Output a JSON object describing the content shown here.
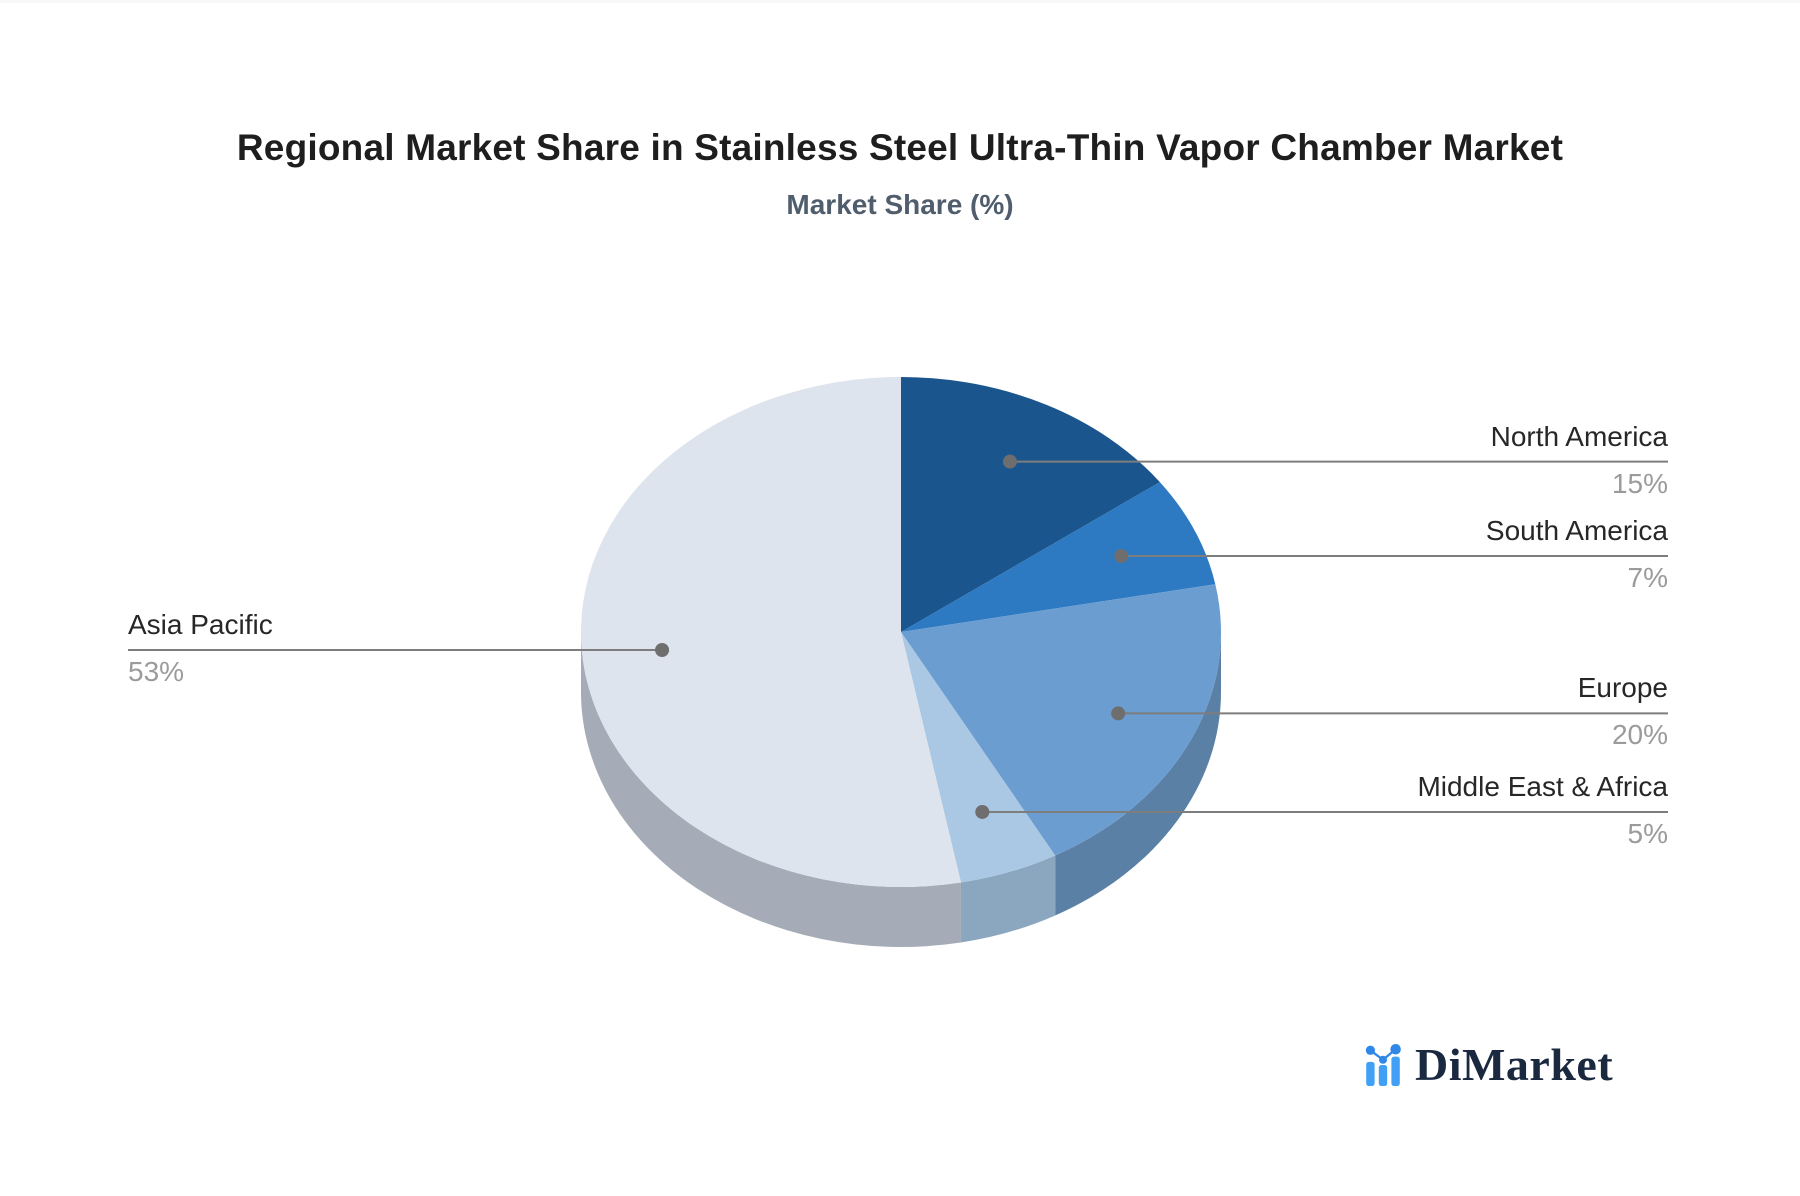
{
  "chart_data": {
    "type": "pie",
    "title": "Regional Market Share in Stainless Steel Ultra-Thin Vapor Chamber Market",
    "subtitle": "Market Share (%)",
    "style": {
      "effect": "3d",
      "leader_line_color": "#7d7d7d",
      "dot_color": "#6e6e6e",
      "background": "#ffffff",
      "title_color": "#1e1e1e",
      "subtitle_color": "#4f5d6c",
      "label_color": "#272727",
      "pct_color": "#9b9b9b"
    },
    "start_angle_deg": 0,
    "legend_position": "callout-labels",
    "regions": [
      {
        "name": "North America",
        "value": 15,
        "pct_label": "15%",
        "color": "#1a558d",
        "side_color": "#144672",
        "label_side": "right"
      },
      {
        "name": "South America",
        "value": 7,
        "pct_label": "7%",
        "color": "#2d7ac2",
        "side_color": "#266aa8",
        "label_side": "right"
      },
      {
        "name": "Europe",
        "value": 20,
        "pct_label": "20%",
        "color": "#6b9dd1",
        "side_color": "#5b80a5",
        "label_side": "right"
      },
      {
        "name": "Middle East & Africa",
        "value": 5,
        "pct_label": "5%",
        "color": "#aac8e4",
        "side_color": "#8ba6bf",
        "label_side": "right"
      },
      {
        "name": "Asia Pacific",
        "value": 53,
        "pct_label": "53%",
        "color": "#dde4ee",
        "side_color": "#a6acb7",
        "label_side": "left"
      }
    ]
  },
  "branding": {
    "logo_text": "DiMarket",
    "logo_icon": "bar-chart-trend-icon",
    "logo_bar_color": "#41a0f5",
    "logo_dot_color": "#2f88e8",
    "logo_text_color": "#1a2940"
  }
}
